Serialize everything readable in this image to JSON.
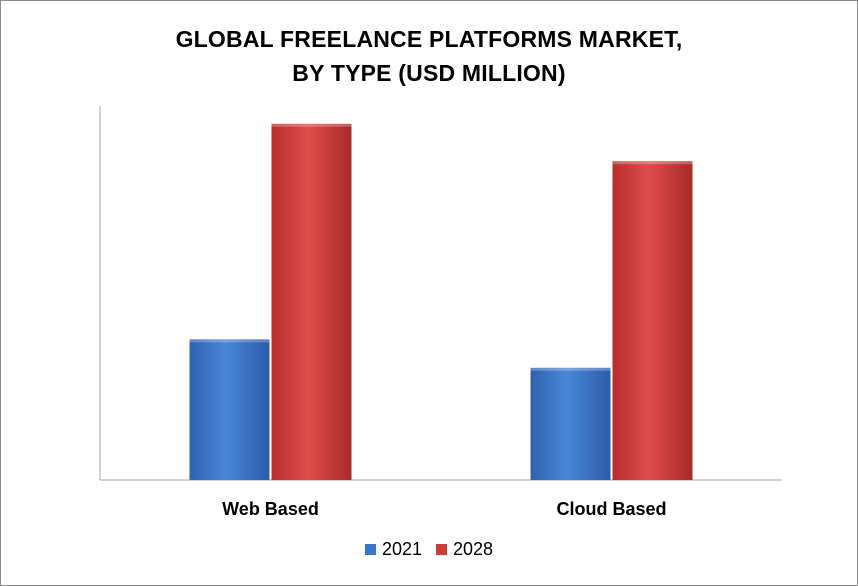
{
  "chart_data": {
    "type": "bar",
    "title": "GLOBAL FREELANCE PLATFORMS MARKET,",
    "subtitle": "BY TYPE (USD MILLION)",
    "categories": [
      "Web Based",
      "Cloud Based"
    ],
    "series": [
      {
        "name": "2021",
        "values": [
          39.5,
          31.5
        ],
        "color": "#3a73c8"
      },
      {
        "name": "2028",
        "values": [
          100,
          89.5
        ],
        "color": "#cd3b3a"
      }
    ],
    "xlabel": "",
    "ylabel": "",
    "ylim": [
      0,
      105
    ],
    "grid": false,
    "legend_position": "bottom"
  }
}
